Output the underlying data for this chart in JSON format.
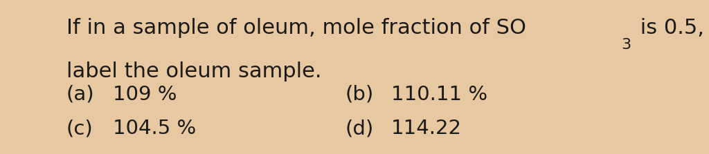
{
  "background_color": "#FFFFFF",
  "border_color": "#E8C8A0",
  "line1_parts": [
    {
      "text": "If in a sample of oleum, mole fraction of SO",
      "style": "normal"
    },
    {
      "text": "3",
      "style": "subscript"
    },
    {
      "text": " is 0.5,",
      "style": "normal"
    }
  ],
  "line2": "label the oleum sample.",
  "options": [
    {
      "label": "(a)",
      "text": "109 %",
      "col": 0
    },
    {
      "label": "(b)",
      "text": "110.11 %",
      "col": 1
    },
    {
      "label": "(c)",
      "text": "104.5 %",
      "col": 0
    },
    {
      "label": "(d)",
      "text": "114.22",
      "col": 1
    }
  ],
  "font_size_main": 22,
  "font_size_options": 21,
  "font_size_subscript": 16,
  "text_color": "#1a1a1a",
  "fig_width": 10.24,
  "fig_height": 2.23,
  "dpi": 100
}
